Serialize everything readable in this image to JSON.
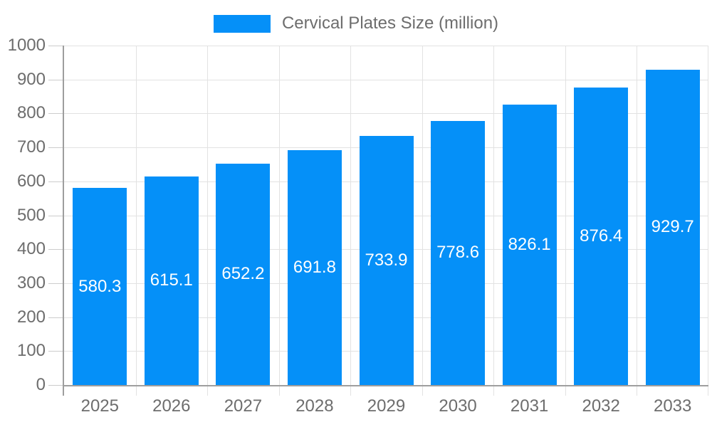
{
  "legend": {
    "label": "Cervical Plates Size (million)"
  },
  "chart_data": {
    "type": "bar",
    "title": "Cervical Plates Size (million)",
    "categories": [
      "2025",
      "2026",
      "2027",
      "2028",
      "2029",
      "2030",
      "2031",
      "2032",
      "2033"
    ],
    "values": [
      580.3,
      615.1,
      652.2,
      691.8,
      733.9,
      778.6,
      826.1,
      876.4,
      929.7
    ],
    "value_labels": [
      "580.3",
      "615.1",
      "652.2",
      "691.8",
      "733.9",
      "778.6",
      "826.1",
      "876.4",
      "929.7"
    ],
    "ylim": [
      0,
      1000
    ],
    "ytick_step": 100,
    "ytick_labels": [
      "0",
      "100",
      "200",
      "300",
      "400",
      "500",
      "600",
      "700",
      "800",
      "900",
      "1000"
    ],
    "grid": true,
    "legend_position": "top",
    "colors": {
      "bar": "#0590f8",
      "value_label": "#ffffff",
      "axis_text": "#6d6d6d",
      "grid_line": "#e2e2e2",
      "axis_line": "#9e9e9e",
      "tick_line": "#cccccc"
    }
  }
}
